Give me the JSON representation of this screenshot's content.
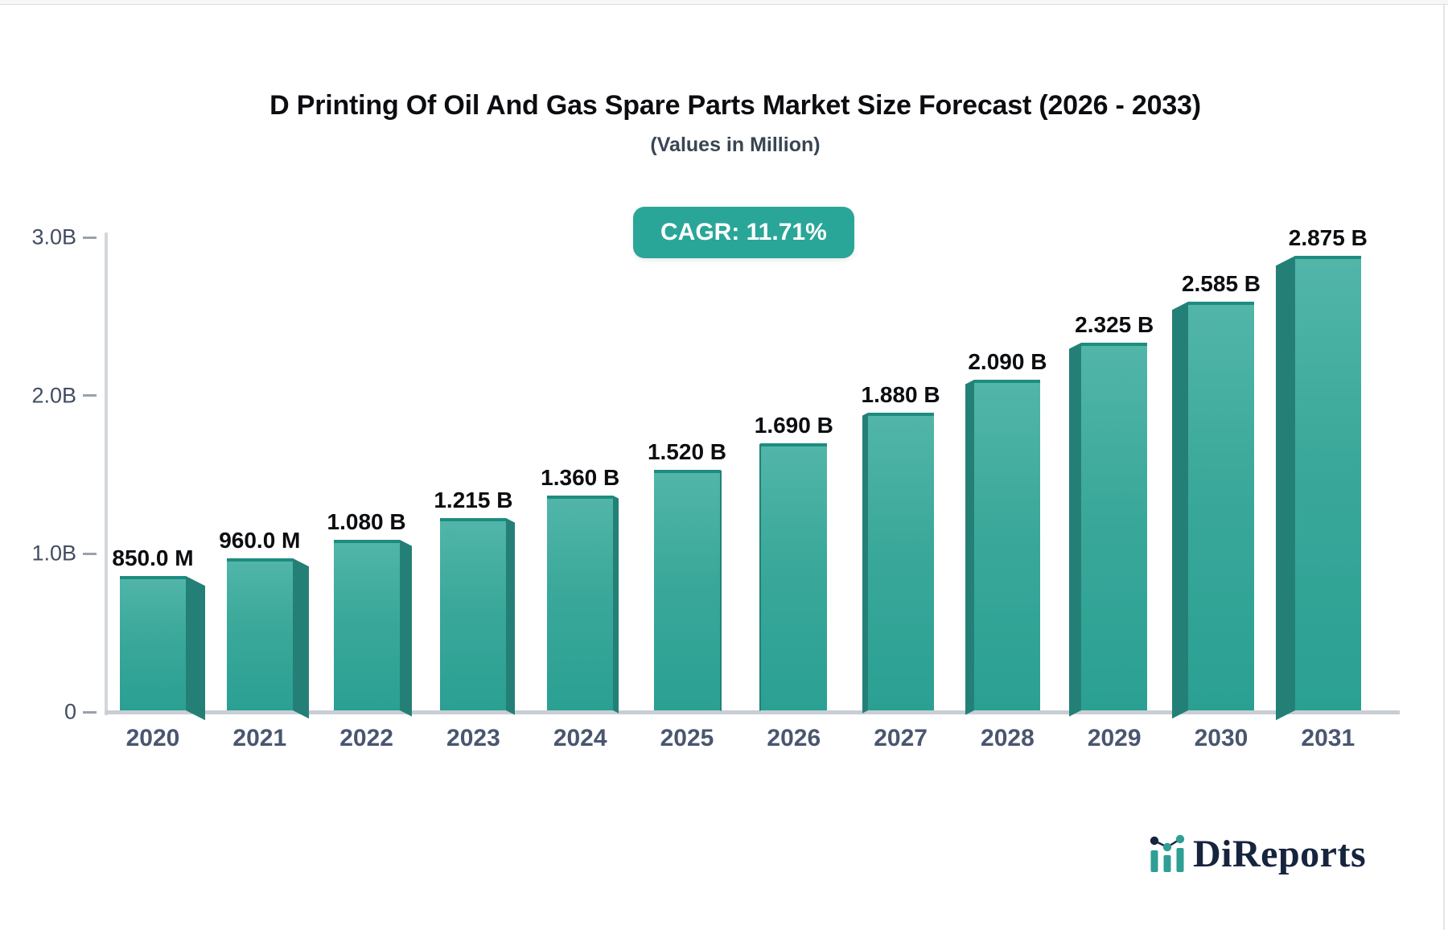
{
  "header": {
    "title": "D Printing Of Oil And Gas Spare Parts Market Size Forecast (2026 - 2033)",
    "subtitle": "(Values in Million)"
  },
  "badge": {
    "label": "CAGR: 11.71%"
  },
  "chart_data": {
    "type": "bar",
    "title": "D Printing Of Oil And Gas Spare Parts Market Size Forecast (2026 - 2033)",
    "subtitle": "(Values in Million)",
    "cagr": "CAGR: 11.71%",
    "categories": [
      "2020",
      "2021",
      "2022",
      "2023",
      "2024",
      "2025",
      "2026",
      "2027",
      "2028",
      "2029",
      "2030",
      "2031"
    ],
    "values_billions": [
      0.85,
      0.96,
      1.08,
      1.215,
      1.36,
      1.52,
      1.69,
      1.88,
      2.09,
      2.325,
      2.585,
      2.875
    ],
    "bar_labels": [
      "850.0 M",
      "960.0 M",
      "1.080 B",
      "1.215 B",
      "1.360 B",
      "1.520 B",
      "1.690 B",
      "1.880 B",
      "2.090 B",
      "2.325 B",
      "2.585 B",
      "2.875 B"
    ],
    "y_ticks": [
      {
        "label": "3.0B",
        "value": 3.0
      },
      {
        "label": "2.0B",
        "value": 2.0
      },
      {
        "label": "1.0B",
        "value": 1.0
      },
      {
        "label": "0",
        "value": 0
      }
    ],
    "ylim": [
      0,
      3.0
    ],
    "xlabel": "",
    "ylabel": "",
    "grid": false,
    "legend": "none",
    "style_3d": true,
    "colors": {
      "bar_front_top": "#52b6a9",
      "bar_front_bottom": "#2aa093",
      "bar_top_edge": "#1e8c80",
      "bar_side": "#248077",
      "badge_bg": "#2aa698",
      "axis_line": "#d3d6db",
      "baseline": "#c9cdd4",
      "tick_dash": "#9aa1ab",
      "y_label": "#414d60",
      "x_label": "#4a5670",
      "value_label": "#0b0d10",
      "title": "#0c0d10",
      "subtitle": "#3a4554"
    }
  },
  "logo": {
    "text": "DiReports",
    "colors": {
      "teal": "#2f9e94",
      "navy": "#16243e"
    }
  }
}
